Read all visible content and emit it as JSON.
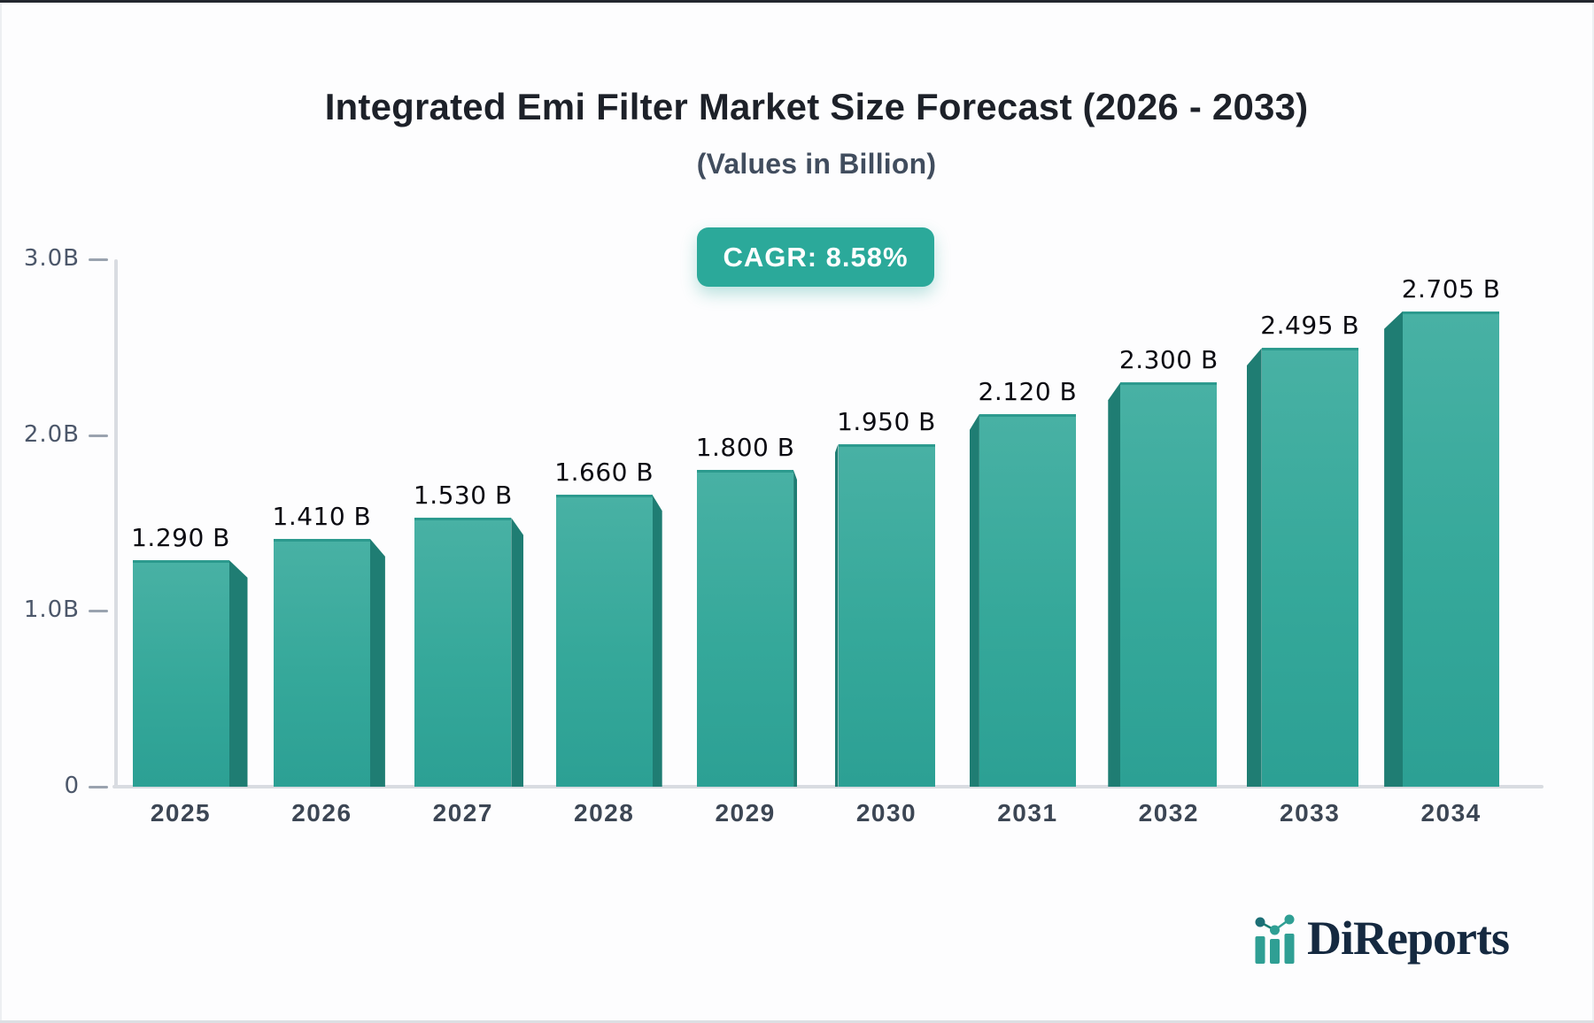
{
  "header": {
    "title": "Integrated Emi Filter Market Size Forecast (2026 - 2033)",
    "subtitle": "(Values in Billion)",
    "cagr_label": "CAGR: 8.58%"
  },
  "chart_data": {
    "type": "bar",
    "title": "Integrated Emi Filter Market Size Forecast (2026 - 2033)",
    "subtitle": "(Values in Billion)",
    "annotation": "CAGR: 8.58%",
    "categories": [
      "2025",
      "2026",
      "2027",
      "2028",
      "2029",
      "2030",
      "2031",
      "2032",
      "2033",
      "2034"
    ],
    "values": [
      1.29,
      1.41,
      1.53,
      1.66,
      1.8,
      1.95,
      2.12,
      2.3,
      2.495,
      2.705
    ],
    "value_labels": [
      "1.290 B",
      "1.410 B",
      "1.530 B",
      "1.660 B",
      "1.800 B",
      "1.950 B",
      "2.120 B",
      "2.300 B",
      "2.495 B",
      "2.705 B"
    ],
    "unit": "Billion",
    "ylim": [
      0,
      3
    ],
    "yticks": [
      {
        "label": "3.0B",
        "value": 3
      },
      {
        "label": "2.0B",
        "value": 2
      },
      {
        "label": "1.0B",
        "value": 1
      },
      {
        "label": "0",
        "value": 0
      }
    ],
    "grid": false,
    "legend": "none",
    "colors": {
      "bar_face_top": "#48b1a4",
      "bar_face_bottom": "#2ca094",
      "bar_top_edge": "#2c9a8e",
      "bar_side": "#1f7d73",
      "badge_background": "#2ba99a",
      "badge_text": "#ffffff",
      "axis": "#d9dce1",
      "tick_text": "#4c576a",
      "category_text": "#3c4654",
      "value_text": "#0b0b12"
    }
  },
  "branding": {
    "logo_text": "DiReports"
  }
}
